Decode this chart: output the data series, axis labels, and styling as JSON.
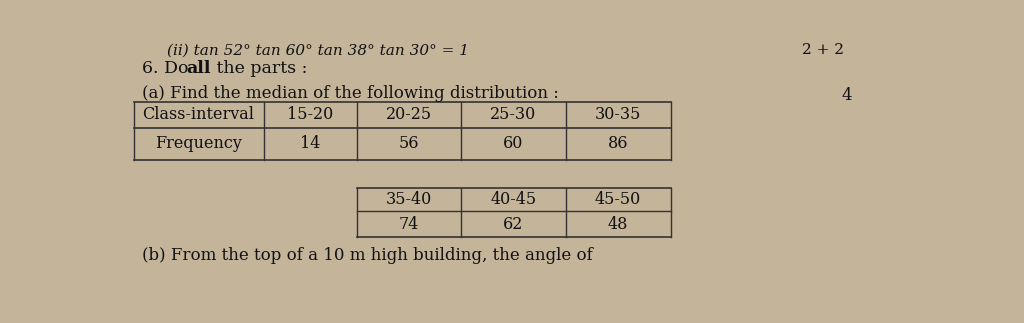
{
  "title_line1_part1": "(ii) tan 52° tan 60° tan 38° tan 30° = 1",
  "title_mark1": "2 + 2",
  "title_line2_pre": "6. Do ",
  "title_line2_bold": "all",
  "title_line2_post": " the parts :",
  "title_line3": "(a) Find the median of the following distribution :",
  "title_mark2": "4",
  "row1_header": "Class-interval",
  "row1_cols": [
    "15-20",
    "20-25",
    "25-30",
    "30-35"
  ],
  "row2_header": "Frequency",
  "row2_cols": [
    "14",
    "56",
    "60",
    "86"
  ],
  "row3_cols": [
    "35-40",
    "40-45",
    "45-50"
  ],
  "row4_cols": [
    "74",
    "62",
    "48"
  ],
  "bottom_text": "(b) From the top of a 10 m high building, the angle of",
  "bg_color": "#c4b49a",
  "text_color": "#111111",
  "line_color": "#333333"
}
